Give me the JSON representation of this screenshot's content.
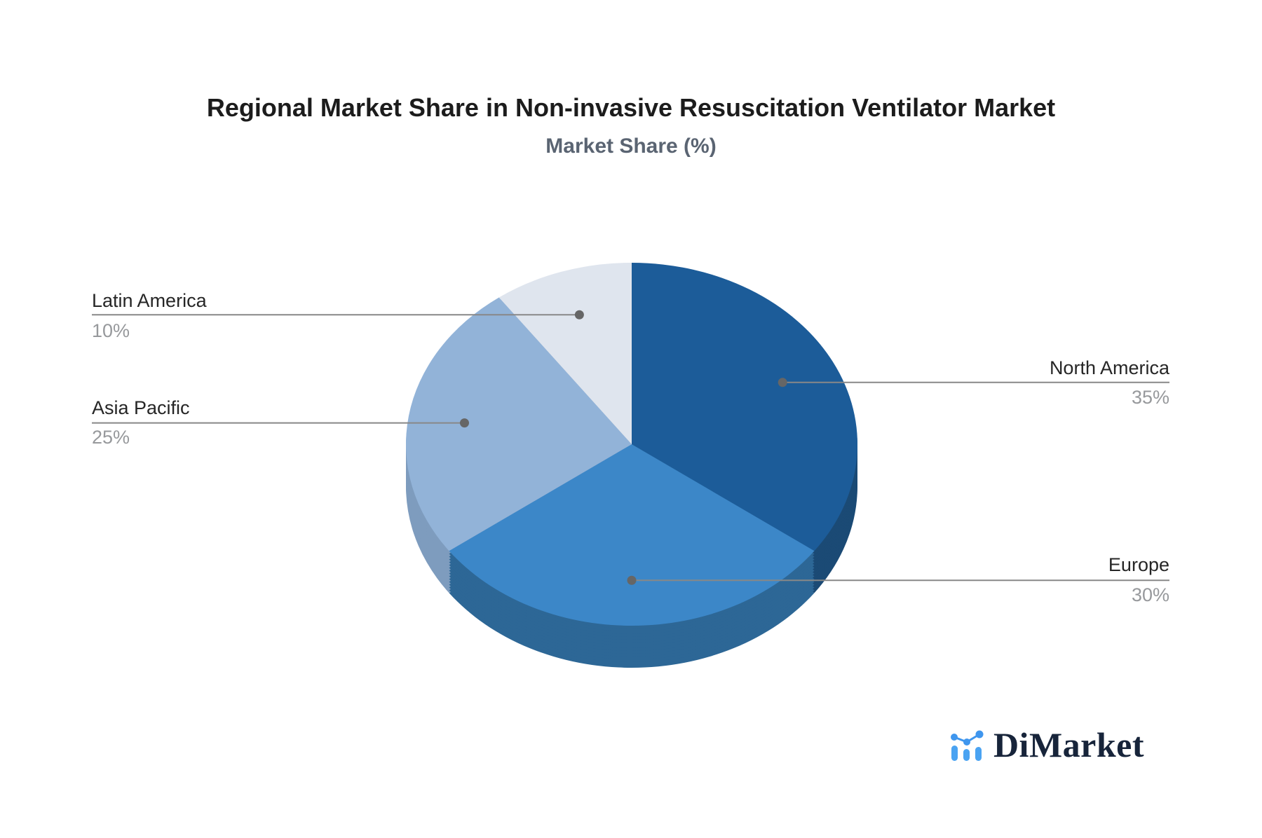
{
  "chart_data": {
    "type": "pie",
    "style": "pie3d",
    "title": "Regional Market Share in Non-invasive Resuscitation Ventilator Market",
    "subtitle": "Market Share (%)",
    "unit": "%",
    "start_angle": "top-clockwise",
    "legend_position": "none",
    "slices": [
      {
        "label": "North America",
        "value": 35,
        "pct_text": "35%",
        "color": "#1C5C99",
        "side_color": "#1B4A75",
        "label_side": "right"
      },
      {
        "label": "Europe",
        "value": 30,
        "pct_text": "30%",
        "color": "#3C87C8",
        "side_color": "#2D6796",
        "label_side": "right"
      },
      {
        "label": "Asia Pacific",
        "value": 25,
        "pct_text": "25%",
        "color": "#92B3D8",
        "side_color": "#7E9CBE",
        "label_side": "left"
      },
      {
        "label": "Latin America",
        "value": 10,
        "pct_text": "10%",
        "color": "#DFE5EE",
        "side_color": "#B9C5D3",
        "label_side": "left"
      }
    ],
    "leader_line_color": "#888888",
    "leader_dot_color": "#666666"
  },
  "logo": {
    "text": "DiMarket",
    "icon": "bar-line-chart-icon",
    "bar_color": "#4AA3F2",
    "accent_color": "#3F96EE",
    "text_color": "#17243A"
  }
}
